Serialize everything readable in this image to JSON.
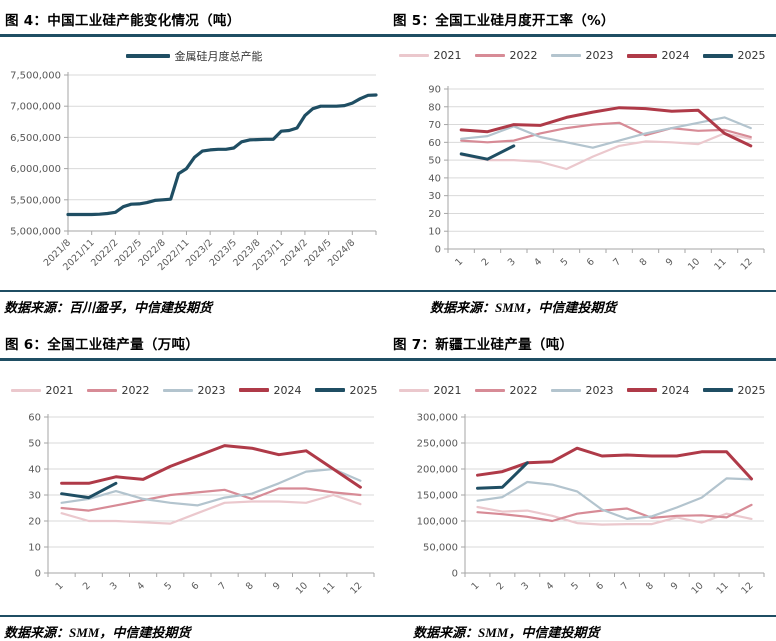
{
  "colors": {
    "rule": "#1F4E63",
    "grid": "#D9D9D9",
    "axis": "#A6A6A6",
    "tick_text": "#595959",
    "legend_text": "#333333",
    "series_2021": "#EBC8CD",
    "series_2022": "#D78B96",
    "series_2023": "#B3C4CE",
    "series_2024": "#AF3A48",
    "series_2025": "#1F4E63"
  },
  "panels": [
    {
      "title": "图 4：中国工业硅产能变化情况（吨）",
      "source": "数据来源：百川盈孚，中信建投期货"
    },
    {
      "title": "图 5：全国工业硅月度开工率（%）",
      "source": "数据来源：SMM，中信建投期货"
    },
    {
      "title": "图 6：全国工业硅产量（万吨）",
      "source": "数据来源：SMM，中信建投期货"
    },
    {
      "title": "图 7：新疆工业硅产量（吨）",
      "source": "数据来源：SMM，中信建投期货"
    }
  ],
  "chart_data": [
    {
      "type": "line",
      "title": "中国工业硅产能变化情况（吨）",
      "ylabel": "",
      "xlabel": "",
      "x_mode": "on-ticks",
      "n_points": 40,
      "x_tick_interval": 3,
      "x_tick_labels": [
        "2021/8",
        "2021/11",
        "2022/2",
        "2022/5",
        "2022/8",
        "2022/11",
        "2023/2",
        "2023/5",
        "2023/8",
        "2023/11",
        "2024/2",
        "2024/5",
        "2024/8"
      ],
      "ylim": [
        5000000,
        7500000
      ],
      "y_step": 500000,
      "grid": true,
      "legend_position": "top-center",
      "series": [
        {
          "name": "金属硅月度总产能",
          "color": "#1F4E63",
          "width": 3.2,
          "values": [
            5265000,
            5265000,
            5265000,
            5265000,
            5270000,
            5280000,
            5300000,
            5390000,
            5430000,
            5435000,
            5455000,
            5490000,
            5500000,
            5510000,
            5920000,
            6000000,
            6180000,
            6280000,
            6300000,
            6310000,
            6310000,
            6330000,
            6430000,
            6460000,
            6465000,
            6470000,
            6470000,
            6600000,
            6610000,
            6650000,
            6850000,
            6960000,
            7000000,
            7000000,
            7000000,
            7010000,
            7050000,
            7120000,
            7175000,
            7180000
          ]
        }
      ]
    },
    {
      "type": "line",
      "title": "全国工业硅月度开工率（%）",
      "x_mode": "between-ticks",
      "x_tick_labels": [
        "1",
        "2",
        "3",
        "4",
        "5",
        "6",
        "7",
        "8",
        "9",
        "10",
        "11",
        "12"
      ],
      "ylim": [
        0,
        90
      ],
      "y_step": 10,
      "grid": true,
      "legend_position": "top-center",
      "series": [
        {
          "name": "2021",
          "color": "#EBC8CD",
          "width": 2.2,
          "values": [
            53,
            50,
            50,
            49,
            45,
            52,
            58,
            60.5,
            60,
            59,
            65,
            62
          ]
        },
        {
          "name": "2022",
          "color": "#D78B96",
          "width": 2.2,
          "values": [
            61,
            60,
            61,
            65,
            68,
            70,
            71,
            64,
            68,
            66.5,
            67,
            63
          ]
        },
        {
          "name": "2023",
          "color": "#B3C4CE",
          "width": 2.2,
          "values": [
            62,
            63.5,
            69,
            63,
            60,
            57,
            61,
            65,
            68,
            71,
            74,
            68
          ]
        },
        {
          "name": "2024",
          "color": "#AF3A48",
          "width": 3,
          "values": [
            67,
            66,
            70,
            69.5,
            74,
            77,
            79.5,
            79,
            77.5,
            78,
            65,
            58
          ]
        },
        {
          "name": "2025",
          "color": "#1F4E63",
          "width": 3,
          "values": [
            53.5,
            50.5,
            58
          ]
        }
      ]
    },
    {
      "type": "line",
      "title": "全国工业硅产量（万吨）",
      "x_mode": "between-ticks",
      "x_tick_labels": [
        "1",
        "2",
        "3",
        "4",
        "5",
        "6",
        "7",
        "8",
        "9",
        "10",
        "11",
        "12"
      ],
      "ylim": [
        0,
        60
      ],
      "y_step": 10,
      "grid": true,
      "legend_position": "top-center",
      "series": [
        {
          "name": "2021",
          "color": "#EBC8CD",
          "width": 2.2,
          "values": [
            23,
            20,
            20,
            19.5,
            19,
            23,
            27,
            27.5,
            27.5,
            27,
            30,
            26.5
          ]
        },
        {
          "name": "2022",
          "color": "#D78B96",
          "width": 2.2,
          "values": [
            25,
            24,
            26,
            28,
            30,
            31,
            32,
            28.5,
            32.5,
            32.5,
            31,
            30
          ]
        },
        {
          "name": "2023",
          "color": "#B3C4CE",
          "width": 2.2,
          "values": [
            27,
            28.5,
            31.5,
            28.5,
            27,
            26,
            29,
            30.5,
            34.5,
            39,
            40,
            35.5
          ]
        },
        {
          "name": "2024",
          "color": "#AF3A48",
          "width": 3,
          "values": [
            34.5,
            34.5,
            37,
            36,
            41,
            45,
            49,
            48,
            45.5,
            47,
            40,
            33
          ]
        },
        {
          "name": "2025",
          "color": "#1F4E63",
          "width": 3,
          "values": [
            30.5,
            29,
            34.5
          ]
        }
      ]
    },
    {
      "type": "line",
      "title": "新疆工业硅产量（吨）",
      "x_mode": "between-ticks",
      "x_tick_labels": [
        "1",
        "2",
        "3",
        "4",
        "5",
        "6",
        "7",
        "8",
        "9",
        "10",
        "11",
        "12"
      ],
      "ylim": [
        0,
        300000
      ],
      "y_step": 50000,
      "grid": true,
      "legend_position": "top-center",
      "series": [
        {
          "name": "2021",
          "color": "#EBC8CD",
          "width": 2.2,
          "values": [
            127000,
            118000,
            120000,
            110000,
            96000,
            93000,
            94000,
            94000,
            107000,
            97000,
            114000,
            104000
          ]
        },
        {
          "name": "2022",
          "color": "#D78B96",
          "width": 2.2,
          "values": [
            117000,
            113000,
            108000,
            100000,
            114000,
            120000,
            124000,
            106000,
            110000,
            111000,
            107000,
            131000
          ]
        },
        {
          "name": "2023",
          "color": "#B3C4CE",
          "width": 2.2,
          "values": [
            139000,
            146000,
            175000,
            170000,
            157000,
            122000,
            104000,
            109000,
            126000,
            145000,
            182000,
            180000
          ]
        },
        {
          "name": "2024",
          "color": "#AF3A48",
          "width": 3,
          "values": [
            188000,
            195000,
            212000,
            214000,
            240000,
            225000,
            227000,
            225000,
            225000,
            233000,
            233000,
            181000
          ]
        },
        {
          "name": "2025",
          "color": "#1F4E63",
          "width": 3,
          "values": [
            163000,
            165000,
            212000
          ]
        }
      ]
    }
  ]
}
